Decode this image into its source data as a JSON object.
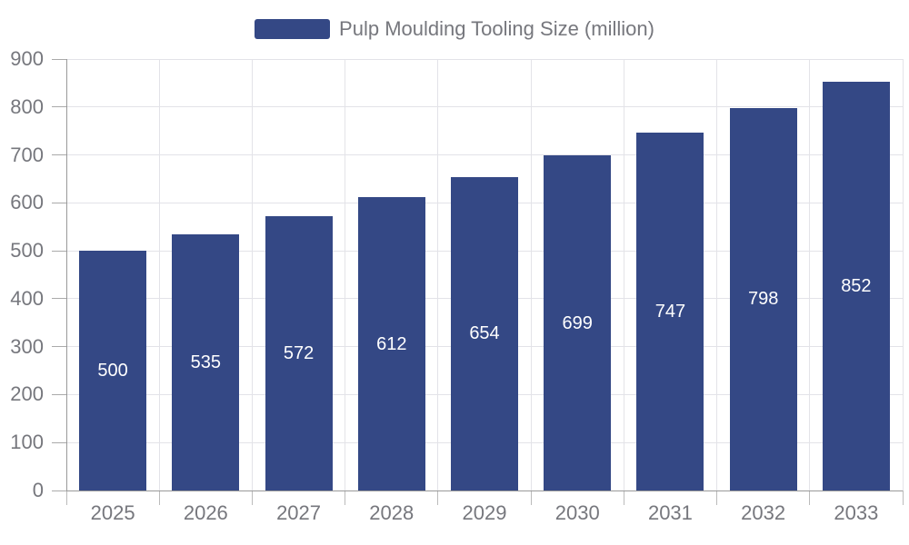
{
  "chart_data": {
    "type": "bar",
    "title": "",
    "categories": [
      "2025",
      "2026",
      "2027",
      "2028",
      "2029",
      "2030",
      "2031",
      "2032",
      "2033"
    ],
    "series": [
      {
        "name": "Pulp Moulding Tooling Size (million)",
        "values": [
          500,
          535,
          572,
          612,
          654,
          699,
          747,
          798,
          852
        ],
        "color": "#344885"
      }
    ],
    "bar_labels": [
      500,
      535,
      572,
      612,
      654,
      699,
      747,
      798,
      852
    ],
    "xlabel": "",
    "ylabel": "",
    "ylim": [
      0,
      900
    ],
    "yticks": [
      0,
      100,
      200,
      300,
      400,
      500,
      600,
      700,
      800,
      900
    ],
    "grid": "horizontal and vertical gridlines on",
    "legend_position": "top-center",
    "colors": {
      "bar": "#344885",
      "bar_value_text": "#ffffff",
      "axis_line": "#999999",
      "gridline": "#e3e3e8",
      "axis_text": "#76777d",
      "legend_text": "#76777d",
      "background": "#ffffff"
    }
  }
}
